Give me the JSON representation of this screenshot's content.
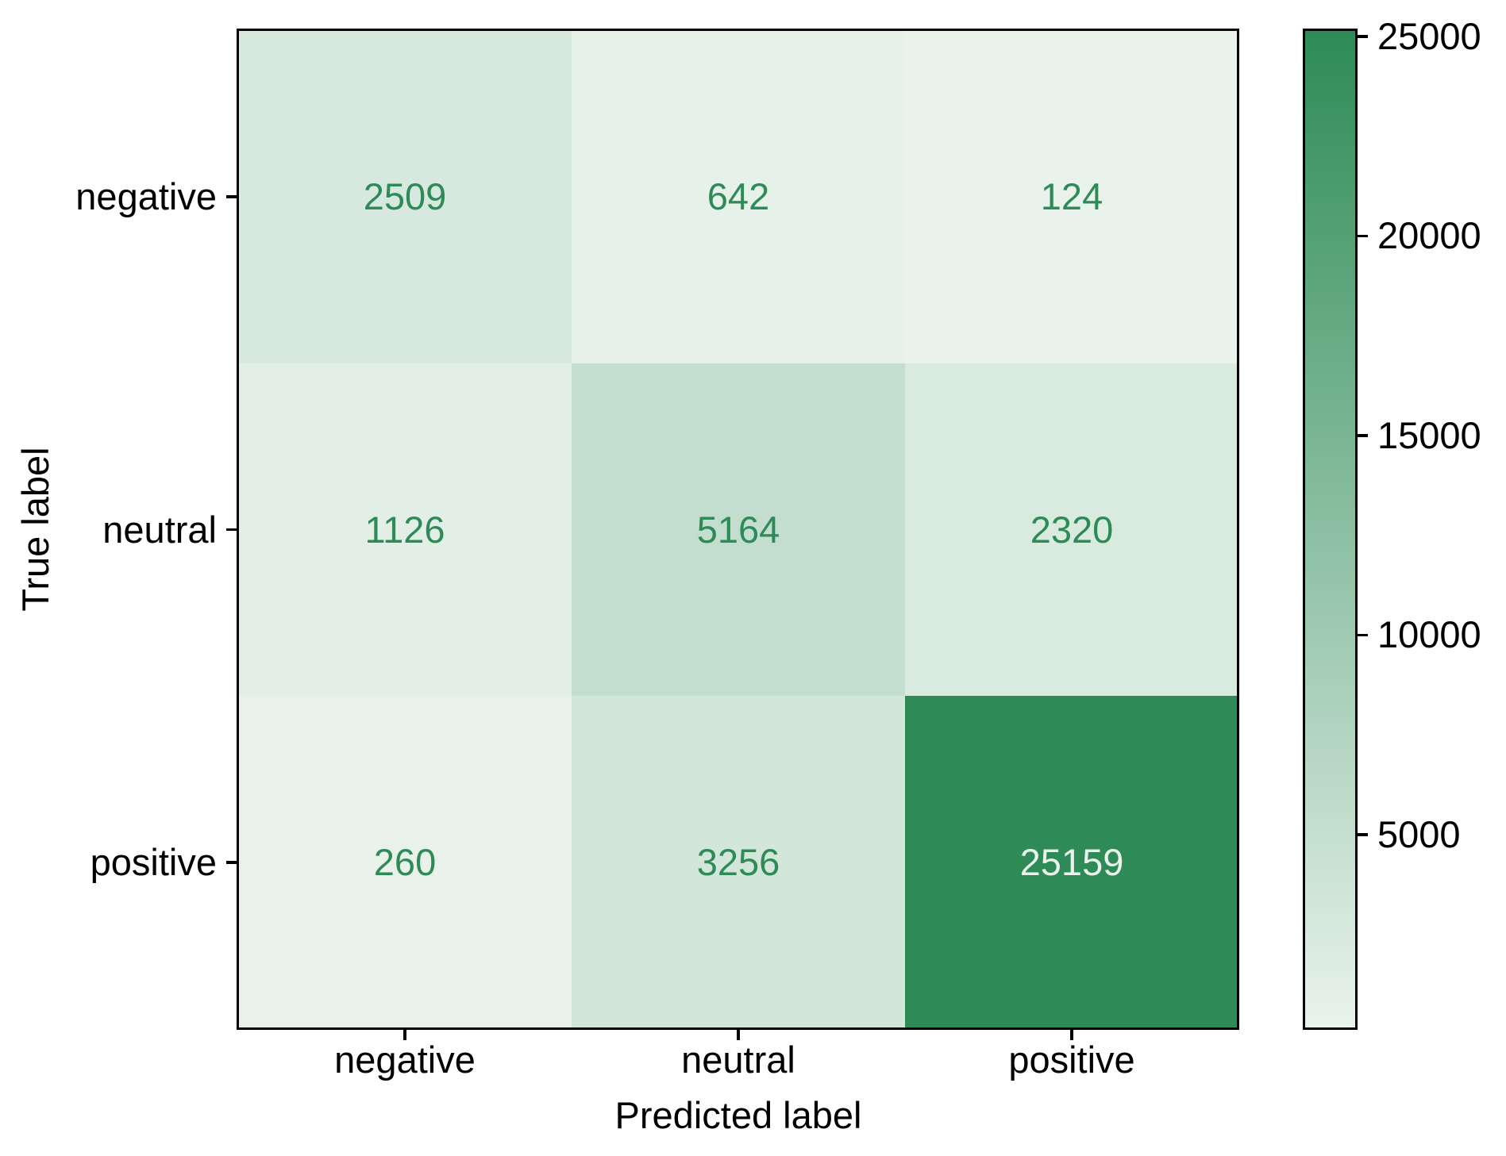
{
  "chart_data": {
    "type": "heatmap",
    "title": "",
    "xlabel": "Predicted label",
    "ylabel": "True label",
    "x_categories": [
      "negative",
      "neutral",
      "positive"
    ],
    "y_categories": [
      "negative",
      "neutral",
      "positive"
    ],
    "matrix": [
      [
        2509,
        642,
        124
      ],
      [
        1126,
        5164,
        2320
      ],
      [
        260,
        3256,
        25159
      ]
    ],
    "vmin": 124,
    "vmax": 25159,
    "colorbar_ticks": [
      5000,
      10000,
      15000,
      20000,
      25000
    ],
    "colors": {
      "cmap_low": "#e9f3ec",
      "cmap_high": "#2e8b57",
      "text_on_light": "#2e8b57",
      "text_on_dark": "#e9f3ec",
      "axis": "#000000"
    },
    "legend_position": "right-colorbar",
    "grid": false
  }
}
